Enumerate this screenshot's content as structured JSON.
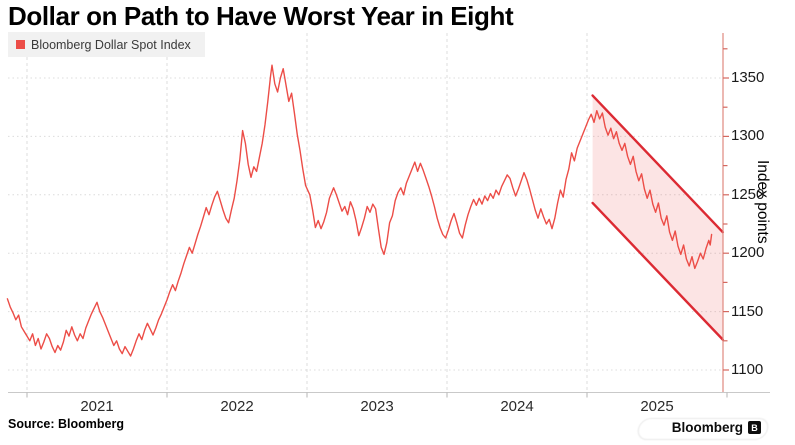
{
  "header": {
    "title": "Dollar on Path to Have Worst Year in Eight"
  },
  "legend": {
    "label": "Bloomberg Dollar Spot Index"
  },
  "axis": {
    "ylabel": "Index points"
  },
  "footer": {
    "source": "Source: Bloomberg",
    "brand": "Bloomberg",
    "brand_logo": "B"
  },
  "chart_data": {
    "type": "line",
    "title": "Dollar on Path to Have Worst Year in Eight",
    "legend": "Bloomberg Dollar Spot Index",
    "ylabel": "Index points",
    "x_unit": "decimal_year",
    "x_range": [
      2020.86,
      2025.97
    ],
    "ylim": [
      1081,
      1388
    ],
    "yticks": [
      1100,
      1150,
      1200,
      1250,
      1300,
      1350
    ],
    "minor_ytick_step": 25,
    "xticks_years": [
      2021,
      2022,
      2023,
      2024,
      2025
    ],
    "x_boundary_ticks": [
      2021,
      2022,
      2023,
      2024,
      2025,
      2026
    ],
    "grid": true,
    "legend_position": "top-left",
    "colors": {
      "price": "#ec4d47",
      "channel": "#dc2a33",
      "channel_fill": "rgba(236,77,71,0.15)",
      "grid": "#dcdcdc",
      "axis": "#e0897f",
      "tick": "#d4685f",
      "tick_label": "#1a1a1a",
      "legend_bg": "#f1f1f1"
    },
    "annotations": {
      "channel": {
        "upper": [
          [
            2025.04,
            1335
          ],
          [
            2025.97,
            1218
          ]
        ],
        "lower": [
          [
            2025.04,
            1243
          ],
          [
            2025.97,
            1126
          ]
        ]
      }
    },
    "series": [
      {
        "name": "Bloomberg Dollar Spot Index",
        "color": "#ec4d47",
        "points": [
          [
            2020.86,
            1161
          ],
          [
            2020.88,
            1154
          ],
          [
            2020.9,
            1149
          ],
          [
            2020.92,
            1143
          ],
          [
            2020.94,
            1147
          ],
          [
            2020.96,
            1137
          ],
          [
            2020.98,
            1133
          ],
          [
            2021.0,
            1129
          ],
          [
            2021.02,
            1125
          ],
          [
            2021.04,
            1131
          ],
          [
            2021.06,
            1121
          ],
          [
            2021.08,
            1127
          ],
          [
            2021.1,
            1118
          ],
          [
            2021.12,
            1124
          ],
          [
            2021.14,
            1131
          ],
          [
            2021.16,
            1127
          ],
          [
            2021.18,
            1120
          ],
          [
            2021.2,
            1115
          ],
          [
            2021.22,
            1121
          ],
          [
            2021.24,
            1117
          ],
          [
            2021.26,
            1124
          ],
          [
            2021.28,
            1134
          ],
          [
            2021.3,
            1129
          ],
          [
            2021.32,
            1137
          ],
          [
            2021.34,
            1130
          ],
          [
            2021.36,
            1125
          ],
          [
            2021.38,
            1131
          ],
          [
            2021.4,
            1127
          ],
          [
            2021.42,
            1136
          ],
          [
            2021.44,
            1142
          ],
          [
            2021.46,
            1148
          ],
          [
            2021.48,
            1153
          ],
          [
            2021.5,
            1158
          ],
          [
            2021.52,
            1150
          ],
          [
            2021.54,
            1145
          ],
          [
            2021.56,
            1139
          ],
          [
            2021.58,
            1133
          ],
          [
            2021.6,
            1127
          ],
          [
            2021.62,
            1121
          ],
          [
            2021.64,
            1125
          ],
          [
            2021.66,
            1118
          ],
          [
            2021.68,
            1114
          ],
          [
            2021.7,
            1120
          ],
          [
            2021.72,
            1116
          ],
          [
            2021.74,
            1112
          ],
          [
            2021.76,
            1118
          ],
          [
            2021.78,
            1125
          ],
          [
            2021.8,
            1131
          ],
          [
            2021.82,
            1126
          ],
          [
            2021.84,
            1134
          ],
          [
            2021.86,
            1140
          ],
          [
            2021.88,
            1135
          ],
          [
            2021.9,
            1130
          ],
          [
            2021.92,
            1136
          ],
          [
            2021.94,
            1143
          ],
          [
            2021.96,
            1148
          ],
          [
            2021.98,
            1154
          ],
          [
            2022.0,
            1160
          ],
          [
            2022.02,
            1167
          ],
          [
            2022.04,
            1173
          ],
          [
            2022.06,
            1168
          ],
          [
            2022.08,
            1176
          ],
          [
            2022.1,
            1183
          ],
          [
            2022.12,
            1191
          ],
          [
            2022.14,
            1198
          ],
          [
            2022.16,
            1205
          ],
          [
            2022.18,
            1200
          ],
          [
            2022.2,
            1208
          ],
          [
            2022.22,
            1216
          ],
          [
            2022.24,
            1223
          ],
          [
            2022.26,
            1231
          ],
          [
            2022.28,
            1239
          ],
          [
            2022.3,
            1233
          ],
          [
            2022.32,
            1241
          ],
          [
            2022.34,
            1248
          ],
          [
            2022.36,
            1253
          ],
          [
            2022.38,
            1245
          ],
          [
            2022.4,
            1237
          ],
          [
            2022.42,
            1230
          ],
          [
            2022.44,
            1226
          ],
          [
            2022.46,
            1237
          ],
          [
            2022.48,
            1247
          ],
          [
            2022.5,
            1262
          ],
          [
            2022.52,
            1280
          ],
          [
            2022.54,
            1305
          ],
          [
            2022.56,
            1294
          ],
          [
            2022.58,
            1276
          ],
          [
            2022.6,
            1265
          ],
          [
            2022.62,
            1274
          ],
          [
            2022.64,
            1270
          ],
          [
            2022.66,
            1282
          ],
          [
            2022.68,
            1294
          ],
          [
            2022.7,
            1310
          ],
          [
            2022.72,
            1330
          ],
          [
            2022.74,
            1352
          ],
          [
            2022.75,
            1361
          ],
          [
            2022.77,
            1345
          ],
          [
            2022.79,
            1338
          ],
          [
            2022.81,
            1350
          ],
          [
            2022.83,
            1358
          ],
          [
            2022.85,
            1344
          ],
          [
            2022.87,
            1330
          ],
          [
            2022.89,
            1337
          ],
          [
            2022.91,
            1320
          ],
          [
            2022.93,
            1302
          ],
          [
            2022.95,
            1288
          ],
          [
            2022.97,
            1272
          ],
          [
            2022.99,
            1258
          ],
          [
            2023.02,
            1250
          ],
          [
            2023.04,
            1237
          ],
          [
            2023.06,
            1222
          ],
          [
            2023.08,
            1228
          ],
          [
            2023.1,
            1221
          ],
          [
            2023.12,
            1227
          ],
          [
            2023.14,
            1235
          ],
          [
            2023.16,
            1247
          ],
          [
            2023.19,
            1256
          ],
          [
            2023.21,
            1250
          ],
          [
            2023.23,
            1243
          ],
          [
            2023.25,
            1236
          ],
          [
            2023.27,
            1240
          ],
          [
            2023.29,
            1233
          ],
          [
            2023.31,
            1244
          ],
          [
            2023.33,
            1238
          ],
          [
            2023.35,
            1228
          ],
          [
            2023.37,
            1215
          ],
          [
            2023.39,
            1222
          ],
          [
            2023.41,
            1230
          ],
          [
            2023.43,
            1240
          ],
          [
            2023.45,
            1235
          ],
          [
            2023.47,
            1242
          ],
          [
            2023.49,
            1238
          ],
          [
            2023.51,
            1221
          ],
          [
            2023.53,
            1205
          ],
          [
            2023.55,
            1199
          ],
          [
            2023.57,
            1209
          ],
          [
            2023.59,
            1226
          ],
          [
            2023.61,
            1232
          ],
          [
            2023.63,
            1245
          ],
          [
            2023.65,
            1252
          ],
          [
            2023.67,
            1256
          ],
          [
            2023.69,
            1250
          ],
          [
            2023.71,
            1260
          ],
          [
            2023.73,
            1266
          ],
          [
            2023.75,
            1272
          ],
          [
            2023.77,
            1278
          ],
          [
            2023.79,
            1270
          ],
          [
            2023.81,
            1277
          ],
          [
            2023.83,
            1271
          ],
          [
            2023.85,
            1264
          ],
          [
            2023.87,
            1257
          ],
          [
            2023.89,
            1249
          ],
          [
            2023.91,
            1240
          ],
          [
            2023.93,
            1230
          ],
          [
            2023.95,
            1222
          ],
          [
            2023.97,
            1216
          ],
          [
            2023.99,
            1213
          ],
          [
            2024.01,
            1220
          ],
          [
            2024.03,
            1228
          ],
          [
            2024.05,
            1234
          ],
          [
            2024.07,
            1226
          ],
          [
            2024.09,
            1217
          ],
          [
            2024.11,
            1213
          ],
          [
            2024.13,
            1224
          ],
          [
            2024.15,
            1233
          ],
          [
            2024.17,
            1240
          ],
          [
            2024.19,
            1246
          ],
          [
            2024.21,
            1241
          ],
          [
            2024.23,
            1247
          ],
          [
            2024.25,
            1242
          ],
          [
            2024.27,
            1249
          ],
          [
            2024.29,
            1245
          ],
          [
            2024.31,
            1251
          ],
          [
            2024.33,
            1247
          ],
          [
            2024.35,
            1254
          ],
          [
            2024.37,
            1250
          ],
          [
            2024.39,
            1257
          ],
          [
            2024.41,
            1262
          ],
          [
            2024.43,
            1267
          ],
          [
            2024.45,
            1264
          ],
          [
            2024.47,
            1256
          ],
          [
            2024.49,
            1249
          ],
          [
            2024.51,
            1255
          ],
          [
            2024.53,
            1262
          ],
          [
            2024.55,
            1269
          ],
          [
            2024.57,
            1263
          ],
          [
            2024.59,
            1255
          ],
          [
            2024.61,
            1246
          ],
          [
            2024.63,
            1237
          ],
          [
            2024.65,
            1230
          ],
          [
            2024.67,
            1238
          ],
          [
            2024.69,
            1231
          ],
          [
            2024.71,
            1225
          ],
          [
            2024.73,
            1229
          ],
          [
            2024.75,
            1221
          ],
          [
            2024.77,
            1230
          ],
          [
            2024.79,
            1243
          ],
          [
            2024.81,
            1254
          ],
          [
            2024.83,
            1248
          ],
          [
            2024.85,
            1263
          ],
          [
            2024.87,
            1272
          ],
          [
            2024.89,
            1286
          ],
          [
            2024.91,
            1279
          ],
          [
            2024.93,
            1290
          ],
          [
            2024.95,
            1296
          ],
          [
            2024.97,
            1302
          ],
          [
            2024.99,
            1308
          ],
          [
            2025.01,
            1314
          ],
          [
            2025.03,
            1319
          ],
          [
            2025.05,
            1312
          ],
          [
            2025.07,
            1322
          ],
          [
            2025.09,
            1315
          ],
          [
            2025.11,
            1320
          ],
          [
            2025.13,
            1308
          ],
          [
            2025.15,
            1301
          ],
          [
            2025.17,
            1307
          ],
          [
            2025.19,
            1298
          ],
          [
            2025.21,
            1304
          ],
          [
            2025.23,
            1294
          ],
          [
            2025.25,
            1288
          ],
          [
            2025.27,
            1294
          ],
          [
            2025.29,
            1283
          ],
          [
            2025.31,
            1276
          ],
          [
            2025.33,
            1283
          ],
          [
            2025.35,
            1270
          ],
          [
            2025.37,
            1262
          ],
          [
            2025.39,
            1268
          ],
          [
            2025.41,
            1255
          ],
          [
            2025.43,
            1247
          ],
          [
            2025.45,
            1254
          ],
          [
            2025.47,
            1242
          ],
          [
            2025.49,
            1235
          ],
          [
            2025.51,
            1243
          ],
          [
            2025.53,
            1230
          ],
          [
            2025.55,
            1224
          ],
          [
            2025.57,
            1232
          ],
          [
            2025.59,
            1218
          ],
          [
            2025.61,
            1211
          ],
          [
            2025.63,
            1219
          ],
          [
            2025.65,
            1206
          ],
          [
            2025.67,
            1199
          ],
          [
            2025.69,
            1207
          ],
          [
            2025.71,
            1195
          ],
          [
            2025.73,
            1189
          ],
          [
            2025.75,
            1197
          ],
          [
            2025.77,
            1187
          ],
          [
            2025.79,
            1193
          ],
          [
            2025.81,
            1200
          ],
          [
            2025.83,
            1195
          ],
          [
            2025.85,
            1204
          ],
          [
            2025.87,
            1211
          ],
          [
            2025.88,
            1207
          ],
          [
            2025.89,
            1216
          ]
        ]
      }
    ]
  }
}
